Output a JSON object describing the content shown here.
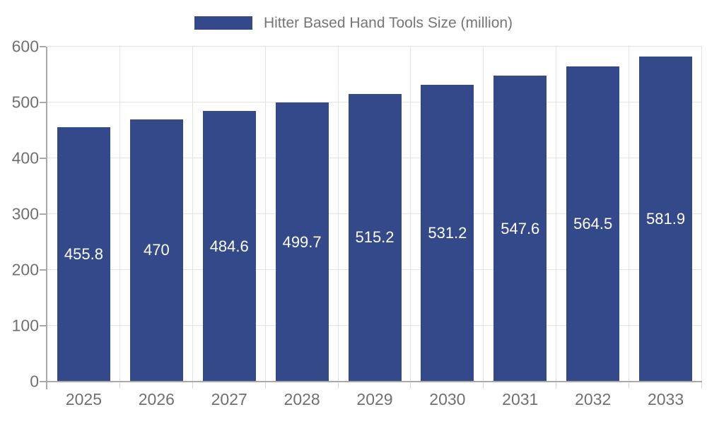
{
  "chart_data": {
    "type": "bar",
    "title": "",
    "legend": "Hitter Based Hand Tools Size (million)",
    "legend_position": "top-center",
    "categories": [
      "2025",
      "2026",
      "2027",
      "2028",
      "2029",
      "2030",
      "2031",
      "2032",
      "2033"
    ],
    "values": [
      455.8,
      470,
      484.6,
      499.7,
      515.2,
      531.2,
      547.6,
      564.5,
      581.9
    ],
    "value_labels": [
      "455.8",
      "470",
      "484.6",
      "499.7",
      "515.2",
      "531.2",
      "547.6",
      "564.5",
      "581.9"
    ],
    "xlabel": "",
    "ylabel": "",
    "ylim": [
      0,
      600
    ],
    "yticks": [
      0,
      100,
      200,
      300,
      400,
      500,
      600
    ],
    "grid": true,
    "colors": {
      "bar": "#34498A",
      "grid": "#E4E4E4",
      "axis": "#A9A9A9",
      "minor_tick": "#D6D6D6",
      "tick_text": "#707070",
      "legend_text": "#757575",
      "value_label": "#FFFFFF",
      "background": "#FFFFFF"
    }
  }
}
